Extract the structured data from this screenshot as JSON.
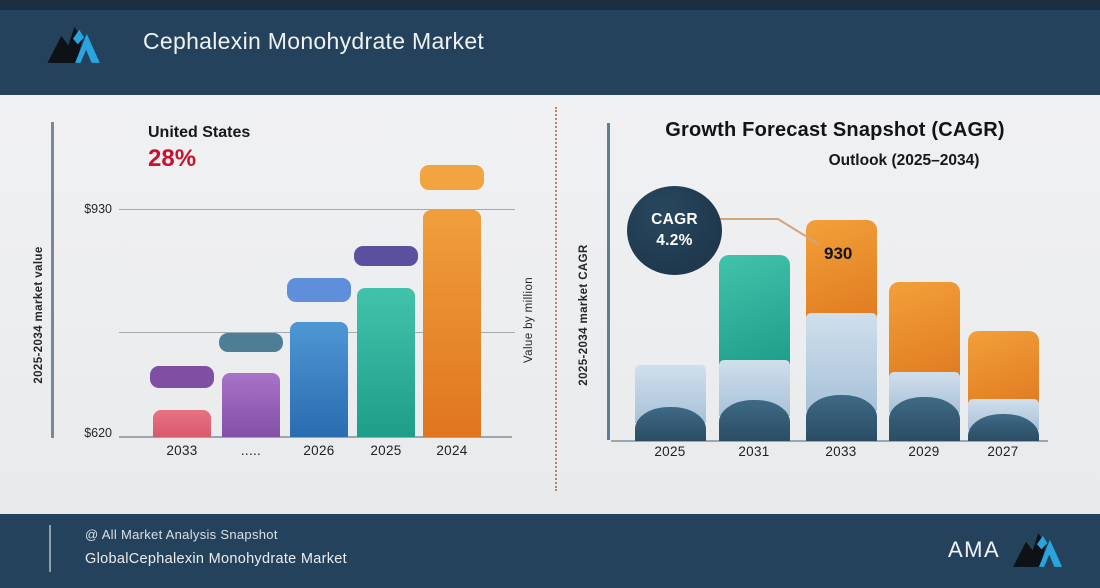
{
  "header": {
    "title": "Cephalexin Monohydrate Market",
    "brand": "AMA"
  },
  "left_chart": {
    "region_label": "United States",
    "highlight_value": "28%",
    "axis_label_left": "2025-2034 market value",
    "axis_label_right": "Value by million",
    "y_tick_top": "$930",
    "y_tick_bottom": "$620"
  },
  "right_chart": {
    "title": "Growth Forecast Snapshot (CAGR)",
    "subtitle": "Outlook (2025–2034)",
    "badge_line1": "CAGR",
    "badge_line2": "4.2%",
    "callout_value": "930",
    "axis_label_left": "2025-2034 market CAGR"
  },
  "footer": {
    "line1": "@ All Market Analysis Snapshot",
    "line2": "GlobalCephalexin Monohydrate Market",
    "brand": "AMA"
  },
  "colors": {
    "header_navy": "#24425c",
    "header_topstrip": "#1a3042",
    "highlight_red": "#c8102e",
    "badge_navy": "#1f384d",
    "connector_tan": "#d5a47c",
    "divider_dotted": "#b5846e",
    "logo_black": "#0e1116",
    "logo_cyan": "#29a4df"
  },
  "chart_data": [
    {
      "type": "bar",
      "title": "United States",
      "annotation": "28%",
      "ylabel": "2025-2034 market value",
      "ylabel_right": "Value by million",
      "categories": [
        "2033",
        ".....",
        "2026",
        "2025",
        "2024"
      ],
      "values": [
        657,
        707,
        777,
        822,
        928
      ],
      "cap_segments": [
        [
          687,
          717
        ],
        [
          735,
          762
        ],
        [
          804,
          836
        ],
        [
          852,
          880
        ],
        [
          956,
          990
        ]
      ],
      "ytick_values": [
        620,
        930
      ],
      "ytick_labels": [
        "$620",
        "$930"
      ],
      "gridline_values": [
        930,
        763
      ],
      "ylim": [
        620,
        1040
      ],
      "grid": "horizontal",
      "bar_colors": [
        [
          "#e87284",
          "#d9596e"
        ],
        [
          "#a873c8",
          "#8350a8"
        ],
        [
          "#4f97d4",
          "#2a6cb0"
        ],
        [
          "#41c3ab",
          "#1d9e8a"
        ],
        [
          "#f09e3c",
          "#e0761f"
        ]
      ],
      "cap_colors": [
        "#7e4fa3",
        "#4e7e96",
        "#5f8edb",
        "#5b50a0",
        "#f2a440"
      ]
    },
    {
      "type": "stacked-bar",
      "title": "Growth Forecast Snapshot (CAGR)",
      "subtitle": "Outlook (2025–2034)",
      "cagr_label": "CAGR 4.2%",
      "categories": [
        "2025",
        "2031",
        "2033",
        "2029",
        "2027"
      ],
      "series": [
        {
          "name": "base",
          "colors": [
            "#3e6a85",
            "#2c4c65"
          ],
          "values": [
            143,
            173,
            194,
            185,
            114
          ]
        },
        {
          "name": "mid",
          "colors": [
            "#d0dfec",
            "#a8c2d8"
          ],
          "values": [
            177,
            168,
            345,
            105,
            63
          ]
        },
        {
          "name": "top",
          "values": [
            0,
            442,
            391,
            379,
            286
          ],
          "top_colors": [
            null,
            [
              "#41c3ab",
              "#1d9e8a"
            ],
            [
              "#f2a03a",
              "#e07b20"
            ],
            [
              "#f2a03a",
              "#e07b20"
            ],
            [
              "#f2a03a",
              "#e07b20"
            ]
          ]
        }
      ],
      "totals": [
        320,
        783,
        930,
        669,
        463
      ],
      "labeled_bar": {
        "category": "2033",
        "value": 930
      },
      "ylabel": "2025-2034 market CAGR",
      "legend": "none"
    }
  ]
}
